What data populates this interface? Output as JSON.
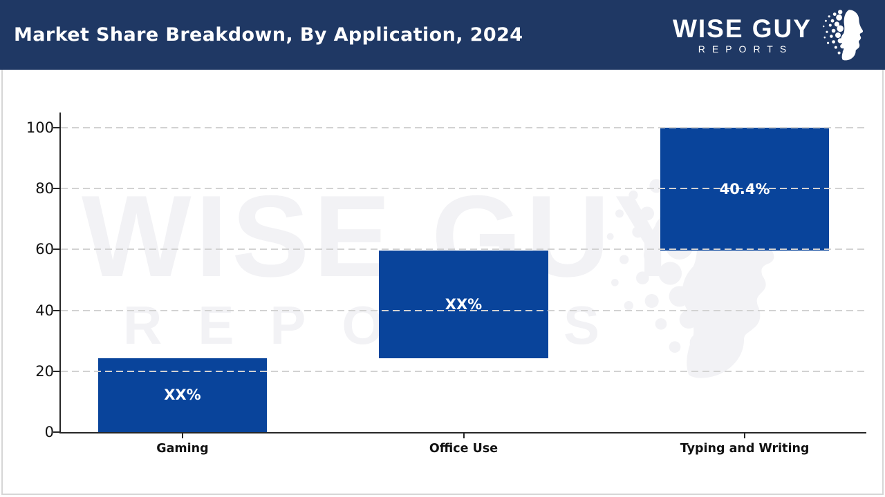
{
  "header": {
    "title": "Market Share Breakdown, By Application, 2024",
    "logo": {
      "line1": "WISE GUY",
      "line2": "REPORTS"
    }
  },
  "watermark": {
    "line1": "WISE GUY",
    "line2": "REPORTS"
  },
  "chart_data": {
    "type": "bar",
    "subtype": "waterfall-breakdown",
    "title": "Market Share Breakdown, By Application, 2024",
    "categories": [
      "Gaming",
      "Office Use",
      "Typing and Writing"
    ],
    "segments": [
      {
        "category": "Gaming",
        "start": 0,
        "end": 24.3,
        "label": "XX%"
      },
      {
        "category": "Office Use",
        "start": 24.3,
        "end": 59.6,
        "label": "XX%"
      },
      {
        "category": "Typing and Writing",
        "start": 59.6,
        "end": 100,
        "label": "40.4%"
      }
    ],
    "xlabel": "",
    "ylabel": "",
    "ylim": [
      0,
      105
    ],
    "y_ticks": [
      0,
      20,
      40,
      60,
      80,
      100
    ],
    "grid": "horizontal dashed, drawn above bars",
    "legend": "none",
    "bar_color": "#09449b",
    "bar_label_color": "#ffffff"
  },
  "colors": {
    "header_bg": "#1f3864",
    "header_text": "#ffffff",
    "bar": "#09449b",
    "axis": "#262626",
    "gridline": "#d2d2d2",
    "tick_text": "#111111",
    "watermark": "#f2f2f5",
    "card_border": "#d6d6d6"
  }
}
